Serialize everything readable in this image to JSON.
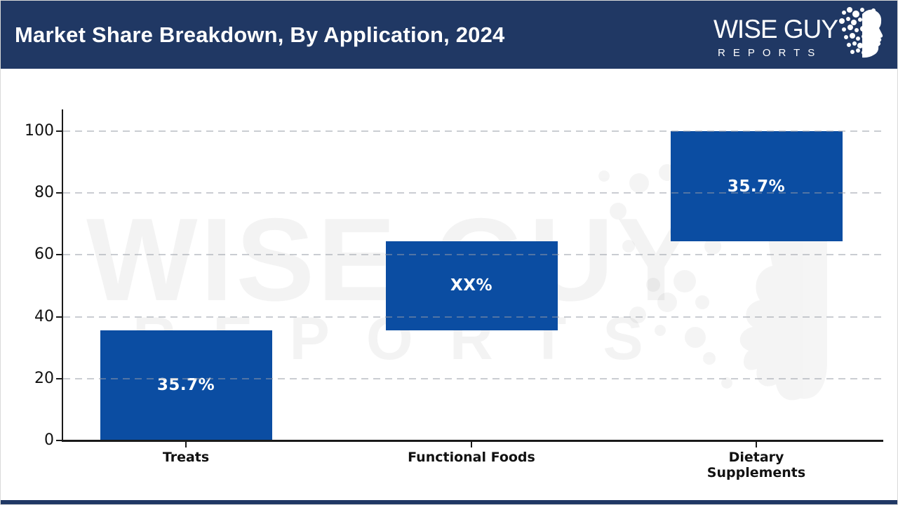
{
  "header": {
    "title": "Market Share Breakdown, By Application, 2024",
    "background": "#203864",
    "logo": {
      "line1": "WISE GUY",
      "line2": "REPORTS"
    }
  },
  "watermark": {
    "line1": "WISE GUY",
    "line2": "REPORTS"
  },
  "footer": {
    "background": "#203864"
  },
  "chart_data": {
    "type": "bar",
    "variant": "floating-segment-waterfall",
    "title": "Market Share Breakdown, By Application, 2024",
    "categories": [
      "Treats",
      "Functional Foods",
      "Dietary\nSupplements"
    ],
    "segments": [
      {
        "category": "Treats",
        "start": 0,
        "end": 35.7,
        "label": "35.7%"
      },
      {
        "category": "Functional Foods",
        "start": 35.7,
        "end": 64.3,
        "label": "XX%"
      },
      {
        "category": "Dietary Supplements",
        "start": 64.3,
        "end": 100,
        "label": "35.7%"
      }
    ],
    "yticks": [
      0,
      20,
      40,
      60,
      80,
      100
    ],
    "ylim": [
      0,
      107
    ],
    "grid": {
      "horizontal": true,
      "style": "dashed",
      "drawn_over_bars": true
    },
    "legend": null,
    "bar_color": "#0b4da2",
    "bar_label_color": "#ffffff",
    "axis_color": "#1a1a1a",
    "gridline_color": "#e0e0e0"
  }
}
